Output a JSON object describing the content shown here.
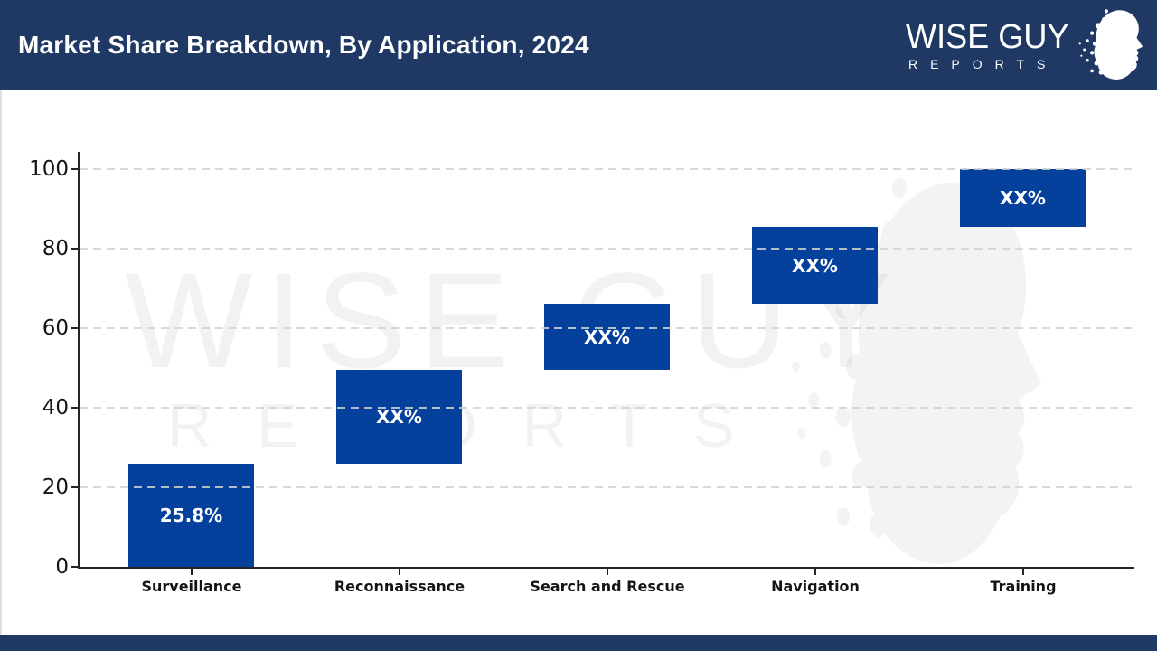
{
  "header": {
    "title": "Market Share Breakdown, By Application, 2024",
    "logo": {
      "line1": "WISE GUY",
      "line2": "REPORTS"
    }
  },
  "watermark": {
    "line1": "WISE GUY",
    "line2": "REPORTS"
  },
  "colors": {
    "header_bg": "#1f3864",
    "footer_bg": "#1f3864",
    "bar": "#05419c",
    "bar_label": "#ffffff",
    "grid": "#d6d6d6",
    "axis": "#262626",
    "tick_label": "#141414",
    "watermark": "#f2f2f2"
  },
  "chart_data": {
    "type": "bar",
    "subtype": "waterfall",
    "title": "Market Share Breakdown, By Application, 2024",
    "xlabel": "",
    "ylabel": "",
    "ylim": [
      0,
      100
    ],
    "yticks": [
      0,
      20,
      40,
      60,
      80,
      100
    ],
    "grid": "horizontal-dashed",
    "legend": null,
    "categories": [
      "Surveillance",
      "Reconnaissance",
      "Search and Rescue",
      "Navigation",
      "Training"
    ],
    "segments": [
      {
        "category": "Surveillance",
        "start": 0,
        "end": 25.8,
        "label": "25.8%"
      },
      {
        "category": "Reconnaissance",
        "start": 25.8,
        "end": 49.5,
        "label": "XX%"
      },
      {
        "category": "Search and Rescue",
        "start": 49.5,
        "end": 66.2,
        "label": "XX%"
      },
      {
        "category": "Navigation",
        "start": 66.2,
        "end": 85.5,
        "label": "XX%"
      },
      {
        "category": "Training",
        "start": 85.5,
        "end": 100,
        "label": "XX%"
      }
    ]
  }
}
